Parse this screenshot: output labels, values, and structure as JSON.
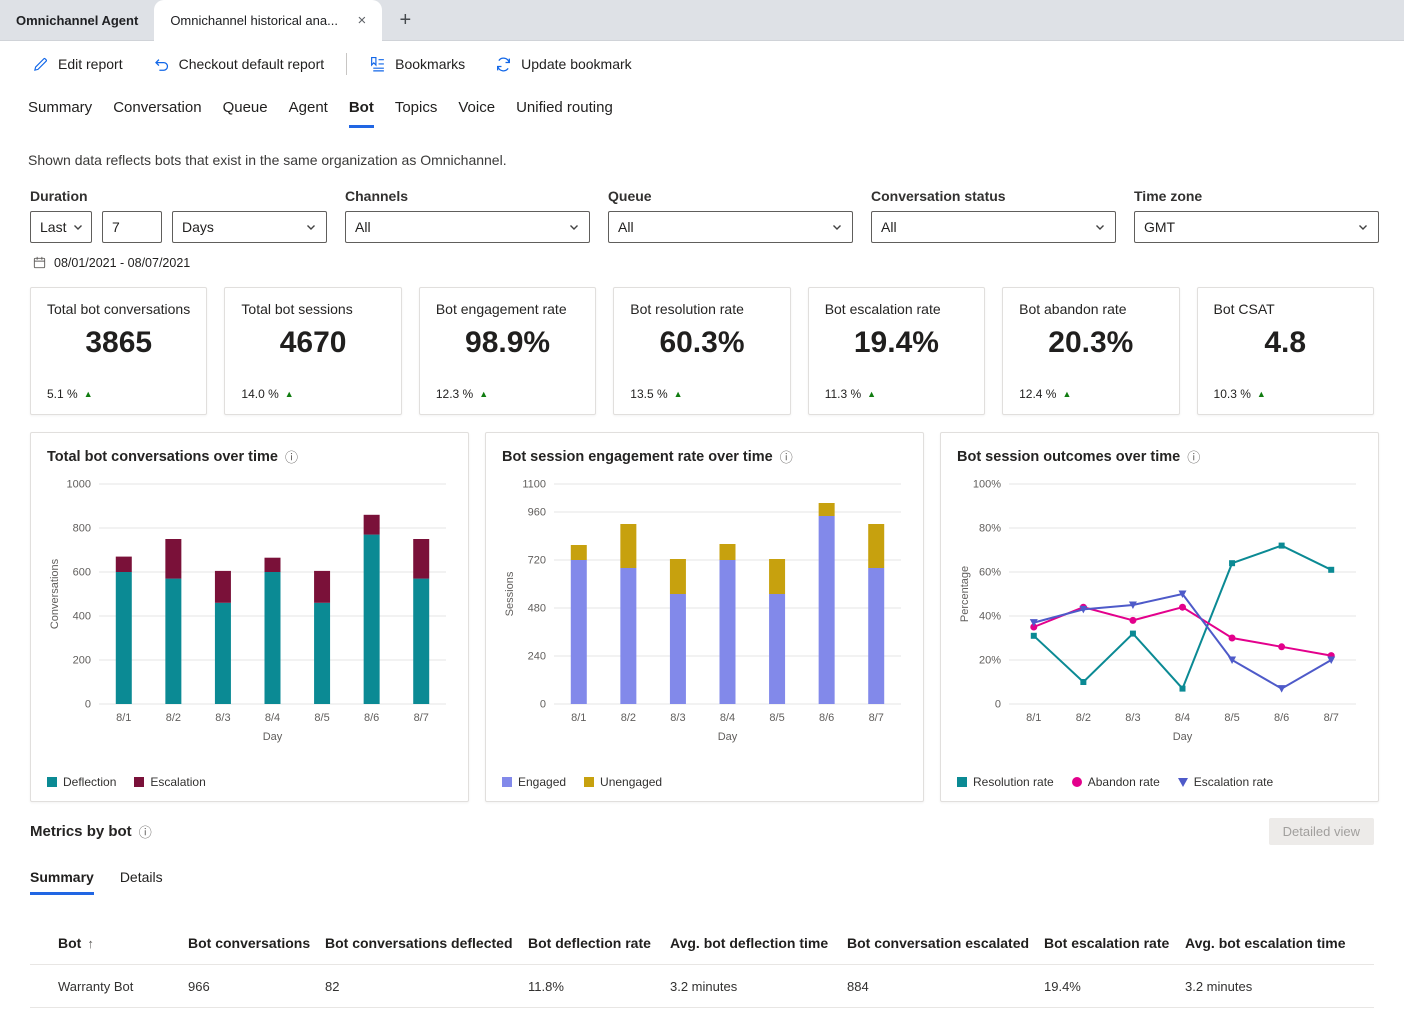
{
  "browser": {
    "tab1": "Omnichannel Agent",
    "tab2": "Omnichannel historical ana..."
  },
  "glyphs": {
    "delta_up": "▲",
    "info": "ⓘ",
    "sort_asc": "↑",
    "close": "×",
    "new_tab": "+"
  },
  "icons": [
    "pencil-icon",
    "undo-icon",
    "bookmarks-icon",
    "sync-icon",
    "calendar-icon",
    "info-icon",
    "chevron-down-icon",
    "delta-up-icon",
    "sort-asc-icon",
    "close-icon",
    "new-tab-icon"
  ],
  "toolbar": {
    "edit_report": "Edit report",
    "checkout_default": "Checkout default report",
    "bookmarks": "Bookmarks",
    "update_bookmark": "Update bookmark"
  },
  "nav": {
    "tabs": [
      "Summary",
      "Conversation",
      "Queue",
      "Agent",
      "Bot",
      "Topics",
      "Voice",
      "Unified routing"
    ],
    "active": "Bot"
  },
  "info_text": "Shown data reflects bots that exist in the same organization as Omnichannel.",
  "filters": {
    "duration": {
      "label": "Duration",
      "last": "Last",
      "value": "7",
      "unit": "Days"
    },
    "channels": {
      "label": "Channels",
      "value": "All"
    },
    "queue": {
      "label": "Queue",
      "value": "All"
    },
    "status": {
      "label": "Conversation status",
      "value": "All"
    },
    "timezone": {
      "label": "Time zone",
      "value": "GMT"
    },
    "date_range": "08/01/2021 - 08/07/2021"
  },
  "kpis": [
    {
      "label": "Total bot conversations",
      "value": "3865",
      "delta": "5.1 %"
    },
    {
      "label": "Total bot sessions",
      "value": "4670",
      "delta": "14.0 %"
    },
    {
      "label": "Bot engagement rate",
      "value": "98.9%",
      "delta": "12.3 %"
    },
    {
      "label": "Bot resolution rate",
      "value": "60.3%",
      "delta": "13.5 %"
    },
    {
      "label": "Bot escalation rate",
      "value": "19.4%",
      "delta": "11.3 %"
    },
    {
      "label": "Bot abandon rate",
      "value": "20.3%",
      "delta": "12.4 %"
    },
    {
      "label": "Bot CSAT",
      "value": "4.8",
      "delta": "10.3 %"
    }
  ],
  "chart_data": [
    {
      "type": "bar",
      "title": "Total bot conversations over time",
      "categories": [
        "8/1",
        "8/2",
        "8/3",
        "8/4",
        "8/5",
        "8/6",
        "8/7"
      ],
      "series": [
        {
          "name": "Deflection",
          "color": "#0b8a94",
          "marker": "square",
          "values": [
            600,
            570,
            460,
            600,
            460,
            770,
            570
          ]
        },
        {
          "name": "Escalation",
          "color": "#7a1139",
          "marker": "square",
          "values": [
            70,
            180,
            145,
            65,
            145,
            90,
            180
          ]
        }
      ],
      "xlabel": "Day",
      "ylabel": "Conversations",
      "ymax": 1000,
      "yticks": [
        0,
        200,
        400,
        600,
        800,
        1000
      ],
      "tick_suffix": "",
      "legend_position": "bottom",
      "grid": true
    },
    {
      "type": "bar",
      "title": "Bot session engagement rate over time",
      "categories": [
        "8/1",
        "8/2",
        "8/3",
        "8/4",
        "8/5",
        "8/6",
        "8/7"
      ],
      "series": [
        {
          "name": "Engaged",
          "color": "#8289ea",
          "marker": "square",
          "values": [
            720,
            680,
            550,
            720,
            550,
            940,
            680
          ]
        },
        {
          "name": "Unengaged",
          "color": "#c7a10e",
          "marker": "square",
          "values": [
            75,
            220,
            175,
            80,
            175,
            65,
            220
          ]
        }
      ],
      "xlabel": "Day",
      "ylabel": "Sessions",
      "ymax": 1100,
      "yticks": [
        0,
        240,
        480,
        720,
        960,
        1100
      ],
      "tick_suffix": "",
      "legend_position": "bottom",
      "grid": true
    },
    {
      "type": "line",
      "title": "Bot session outcomes over time",
      "categories": [
        "8/1",
        "8/2",
        "8/3",
        "8/4",
        "8/5",
        "8/6",
        "8/7"
      ],
      "series": [
        {
          "name": "Resolution rate",
          "color": "#0b8a94",
          "marker": "square",
          "values": [
            31,
            10,
            32,
            7,
            64,
            72,
            61
          ]
        },
        {
          "name": "Abandon rate",
          "color": "#e3008c",
          "marker": "circle",
          "values": [
            35,
            44,
            38,
            44,
            30,
            26,
            22
          ]
        },
        {
          "name": "Escalation rate",
          "color": "#4e5ac9",
          "marker": "triangle",
          "values": [
            37,
            43,
            45,
            50,
            20,
            7,
            20
          ]
        }
      ],
      "xlabel": "Day",
      "ylabel": "Percentage",
      "ymax": 100,
      "yticks": [
        0,
        20,
        40,
        60,
        80,
        100
      ],
      "tick_suffix": "%",
      "legend_position": "bottom",
      "grid": true
    }
  ],
  "metrics": {
    "title": "Metrics by bot",
    "detailed_view": "Detailed view",
    "tabs": [
      "Summary",
      "Details"
    ],
    "active_tab": "Summary",
    "columns": [
      "Bot",
      "Bot conversations",
      "Bot conversations deflected",
      "Bot deflection rate",
      "Avg. bot deflection time",
      "Bot conversation escalated",
      "Bot escalation rate",
      "Avg. bot escalation time"
    ],
    "sort_column": "Bot",
    "rows": [
      {
        "cells": [
          "Warranty Bot",
          "966",
          "82",
          "11.8%",
          "3.2 minutes",
          "884",
          "19.4%",
          "3.2 minutes"
        ]
      }
    ]
  }
}
